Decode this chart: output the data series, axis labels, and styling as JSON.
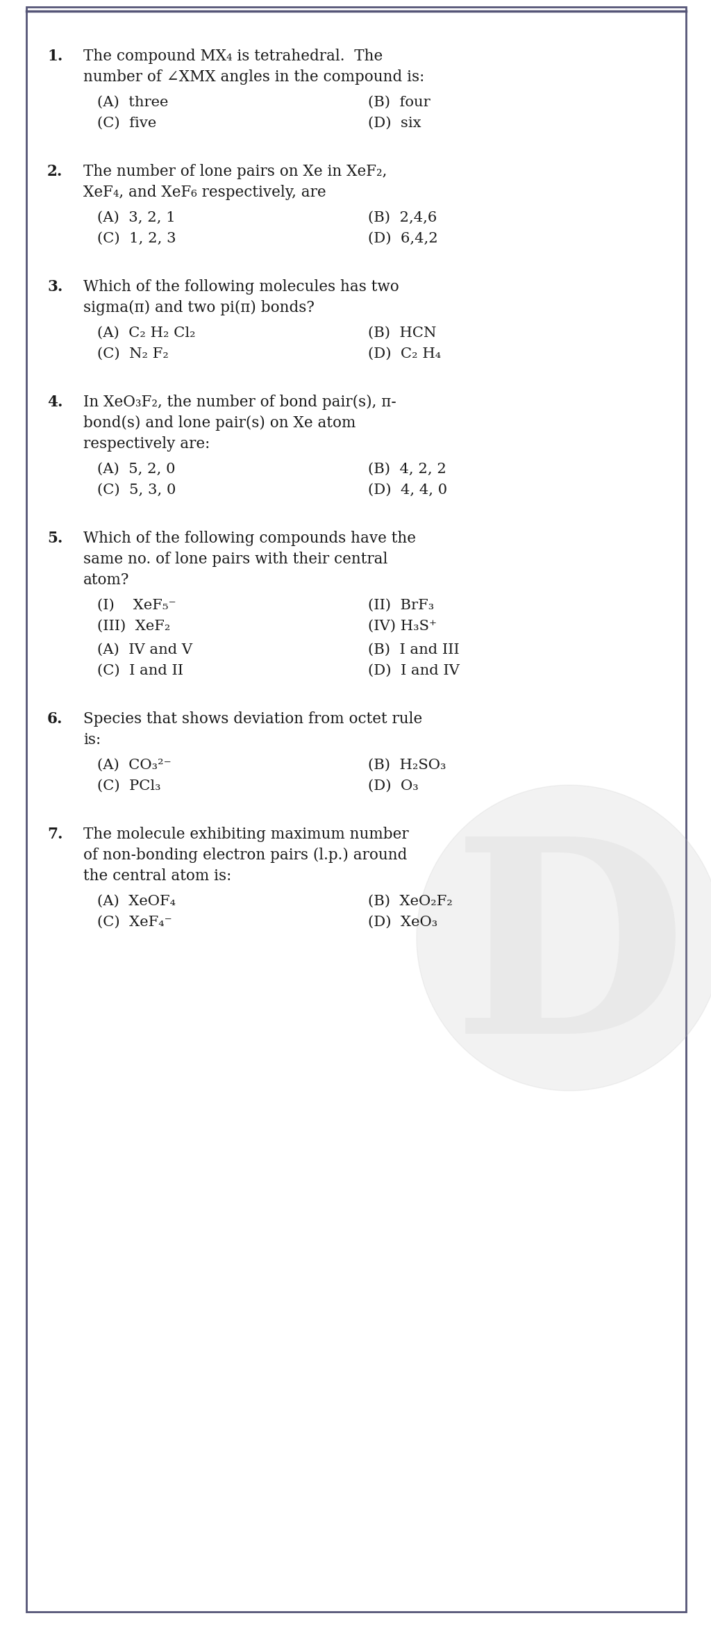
{
  "bg_color": "#ffffff",
  "text_color": "#1a1a1a",
  "border_color": "#555577",
  "fig_width": 10.24,
  "fig_height": 23.39,
  "questions": [
    {
      "number": "1.",
      "question_lines": [
        "The compound MX₄ is tetrahedral.  The",
        "number of ∠XMX angles in the compound is:"
      ],
      "options": [
        [
          "(A)  three",
          "(B)  four"
        ],
        [
          "(C)  five",
          "(D)  six"
        ]
      ]
    },
    {
      "number": "2.",
      "question_lines": [
        "The number of lone pairs on Xe in XeF₂,",
        "XeF₄, and XeF₆ respectively, are"
      ],
      "options": [
        [
          "(A)  3, 2, 1",
          "(B)  2,4,6"
        ],
        [
          "(C)  1, 2, 3",
          "(D)  6,4,2"
        ]
      ]
    },
    {
      "number": "3.",
      "question_lines": [
        "Which of the following molecules has two",
        "sigma(π) and two pi(π) bonds?"
      ],
      "options": [
        [
          "(A)  C₂ H₂ Cl₂",
          "(B)  HCN"
        ],
        [
          "(C)  N₂ F₂",
          "(D)  C₂ H₄"
        ]
      ]
    },
    {
      "number": "4.",
      "question_lines": [
        "In XeO₃F₂, the number of bond pair(s), π-",
        "bond(s) and lone pair(s) on Xe atom",
        "respectively are:"
      ],
      "options": [
        [
          "(A)  5, 2, 0",
          "(B)  4, 2, 2"
        ],
        [
          "(C)  5, 3, 0",
          "(D)  4, 4, 0"
        ]
      ]
    },
    {
      "number": "5.",
      "question_lines": [
        "Which of the following compounds have the",
        "same no. of lone pairs with their central",
        "atom?"
      ],
      "sub_options": [
        [
          "(I)    XeF₅⁻",
          "(II)  BrF₃"
        ],
        [
          "(III)  XeF₂",
          "(IV) H₃S⁺"
        ]
      ],
      "options": [
        [
          "(A)  IV and V",
          "(B)  I and III"
        ],
        [
          "(C)  I and II",
          "(D)  I and IV"
        ]
      ]
    },
    {
      "number": "6.",
      "question_lines": [
        "Species that shows deviation from octet rule",
        "is:"
      ],
      "options": [
        [
          "(A)  CO₃²⁻",
          "(B)  H₂SO₃"
        ],
        [
          "(C)  PCl₃",
          "(D)  O₃"
        ]
      ]
    },
    {
      "number": "7.",
      "question_lines": [
        "The molecule exhibiting maximum number",
        "of non-bonding electron pairs (l.p.) around",
        "the central atom is:"
      ],
      "options": [
        [
          "(A)  XeOF₄",
          "(B)  XeO₂F₂"
        ],
        [
          "(C)  XeF₄⁻",
          "(D)  XeO₃"
        ]
      ]
    }
  ]
}
